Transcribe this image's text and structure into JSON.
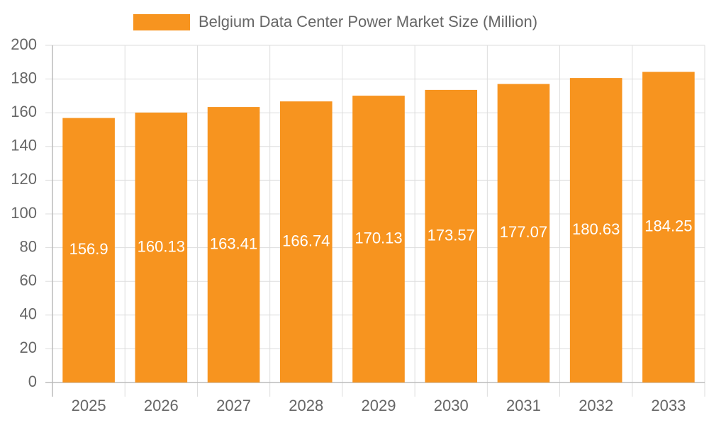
{
  "chart_data": {
    "type": "bar",
    "categories": [
      "2025",
      "2026",
      "2027",
      "2028",
      "2029",
      "2030",
      "2031",
      "2032",
      "2033"
    ],
    "series": [
      {
        "name": "Belgium Data Center Power Market Size (Million)",
        "color": "#f7941f",
        "values": [
          156.9,
          160.13,
          163.41,
          166.74,
          170.13,
          173.57,
          177.07,
          180.63,
          184.25
        ]
      }
    ],
    "ylim": [
      0,
      200
    ],
    "yticks": [
      0,
      20,
      40,
      60,
      80,
      100,
      120,
      140,
      160,
      180,
      200
    ],
    "grid": true,
    "legend": "top",
    "data_labels": true
  }
}
